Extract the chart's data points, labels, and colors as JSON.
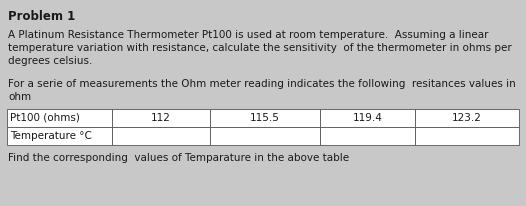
{
  "title": "Problem 1",
  "para1_l1": "A Platinum Resistance Thermometer Pt100 is used at room temperature.  Assuming a linear",
  "para1_l2": "temperature variation with resistance, calculate the sensitivity  of the thermometer in ohms per",
  "para1_l3": "degrees celsius.",
  "para2_l1": "For a serie of measurements the Ohm meter reading indicates the following  resitances values in",
  "para2_l2": "ohm",
  "row1_label": "Pt100 (ohms)",
  "row1_values": [
    "112",
    "115.5",
    "119.4",
    "123.2"
  ],
  "row2_label": "Temperature °C",
  "row2_values": [
    "",
    "",
    "",
    ""
  ],
  "footer": "Find the corresponding  values of Temparature in the above table",
  "bg_color": "#c8c8c8",
  "text_color": "#1a1a1a",
  "font_size_title": 8.5,
  "font_size_body": 7.5,
  "font_size_table": 7.5
}
